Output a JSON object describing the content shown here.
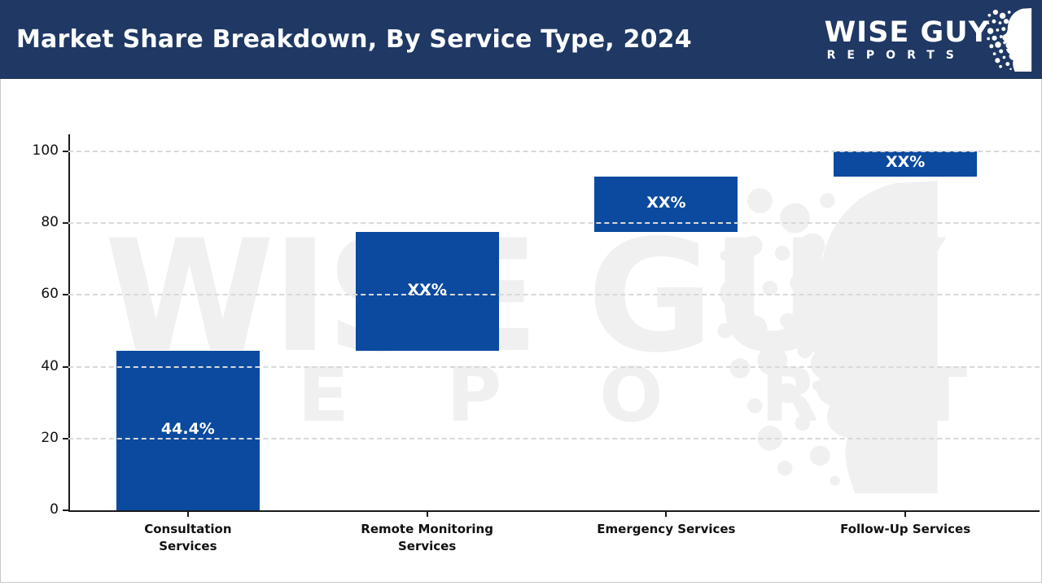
{
  "header": {
    "title": "Market Share Breakdown, By Service Type, 2024",
    "logo_line1": "WISE GUY",
    "logo_line2": "REPORTS"
  },
  "watermark": {
    "line1": "WISE GUY",
    "line2": "R E P O R T S"
  },
  "colors": {
    "header_bg": "#1F3864",
    "bar": "#0B4A9F",
    "gridline": "#D9D9D9",
    "axis": "#1A1A1A",
    "text": "#111111",
    "bar_label": "#FFFFFF",
    "watermark": "#F0F0F1",
    "frame_border": "#C9C9C9"
  },
  "chart_data": {
    "type": "bar",
    "subtype": "waterfall",
    "title": "Market Share Breakdown, By Service Type, 2024",
    "xlabel": "",
    "ylabel": "",
    "ylim": [
      0,
      100
    ],
    "yticks": [
      0,
      20,
      40,
      60,
      80,
      100
    ],
    "grid": "horizontal-dashed",
    "legend": "none",
    "categories": [
      "Consultation Services",
      "Remote Monitoring Services",
      "Emergency Services",
      "Follow-Up Services"
    ],
    "category_lines": [
      [
        "Consultation",
        "Services"
      ],
      [
        "Remote Monitoring",
        "Services"
      ],
      [
        "Emergency Services"
      ],
      [
        "Follow-Up Services"
      ]
    ],
    "series": [
      {
        "name": "Market Share",
        "segments": [
          {
            "category": "Consultation Services",
            "start": 0,
            "end": 44.4,
            "label": "44.4%"
          },
          {
            "category": "Remote Monitoring Services",
            "start": 44.4,
            "end": 77.6,
            "label": "XX%"
          },
          {
            "category": "Emergency Services",
            "start": 77.6,
            "end": 93.0,
            "label": "XX%"
          },
          {
            "category": "Follow-Up Services",
            "start": 93.0,
            "end": 100,
            "label": "XX%"
          }
        ]
      }
    ]
  }
}
